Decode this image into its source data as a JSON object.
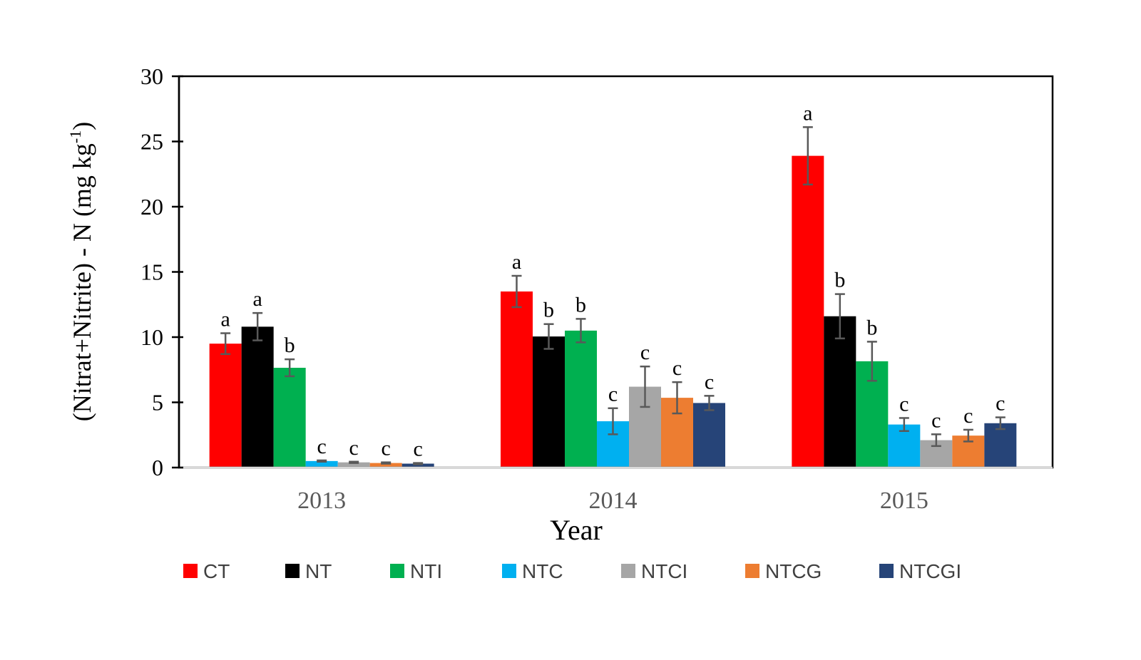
{
  "chart_data": {
    "type": "bar",
    "title": "",
    "xlabel": "Year",
    "ylabel": "(Nitrat+Nitrite) - N (mg kg",
    "ylabel_superscript": "-1",
    "ylabel_suffix": ")",
    "ylim": [
      0,
      30
    ],
    "yticks": [
      0,
      5,
      10,
      15,
      20,
      25,
      30
    ],
    "grid": false,
    "legend_position": "bottom",
    "categories": [
      "2013",
      "2014",
      "2015"
    ],
    "series": [
      {
        "name": "CT",
        "color": "#FF0000",
        "values": [
          9.5,
          13.5,
          23.9
        ],
        "errors": [
          0.8,
          1.2,
          2.2
        ],
        "letters": [
          "a",
          "a",
          "a"
        ]
      },
      {
        "name": "NT",
        "color": "#000000",
        "values": [
          10.8,
          10.05,
          11.6
        ],
        "errors": [
          1.05,
          0.95,
          1.7
        ],
        "letters": [
          "a",
          "b",
          "b"
        ]
      },
      {
        "name": "NTI",
        "color": "#00B050",
        "values": [
          7.65,
          10.5,
          8.15
        ],
        "errors": [
          0.65,
          0.9,
          1.5
        ],
        "letters": [
          "b",
          "b",
          "b"
        ]
      },
      {
        "name": "NTC",
        "color": "#00B0F0",
        "values": [
          0.5,
          3.55,
          3.3
        ],
        "errors": [
          0.05,
          1.0,
          0.5
        ],
        "letters": [
          "c",
          "c",
          "c"
        ]
      },
      {
        "name": "NTCI",
        "color": "#A6A6A6",
        "values": [
          0.4,
          6.2,
          2.1
        ],
        "errors": [
          0.05,
          1.55,
          0.45
        ],
        "letters": [
          "c",
          "c",
          "c"
        ]
      },
      {
        "name": "NTCG",
        "color": "#ED7D31",
        "values": [
          0.35,
          5.35,
          2.45
        ],
        "errors": [
          0.05,
          1.2,
          0.45
        ],
        "letters": [
          "c",
          "c",
          "c"
        ]
      },
      {
        "name": "NTCGI",
        "color": "#264478",
        "values": [
          0.3,
          4.95,
          3.4
        ],
        "errors": [
          0.05,
          0.55,
          0.45
        ],
        "letters": [
          "c",
          "c",
          "c"
        ]
      }
    ],
    "error_bar_color": "#595959"
  }
}
